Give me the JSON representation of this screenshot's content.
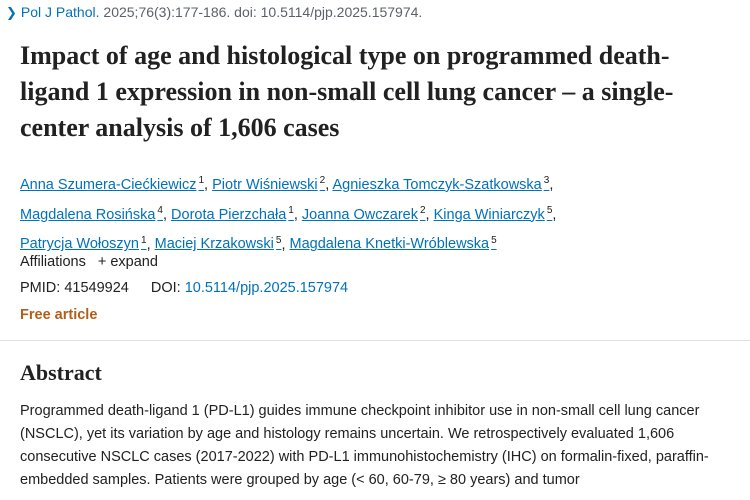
{
  "citation": {
    "journal": "Pol J Pathol.",
    "details": "2025;76(3):177-186. doi: 10.5114/pjp.2025.157974."
  },
  "title": "Impact of age and histological type on programmed death-ligand 1 expression in non-small cell lung cancer – a single-center analysis of 1,606 cases",
  "authors": [
    {
      "name": "Anna Szumera-Ciećkiewicz",
      "aff": "1"
    },
    {
      "name": "Piotr Wiśniewski",
      "aff": "2"
    },
    {
      "name": "Agnieszka Tomczyk-Szatkowska",
      "aff": "3"
    },
    {
      "name": "Magdalena Rosińska",
      "aff": "4"
    },
    {
      "name": "Dorota Pierzchała",
      "aff": "1"
    },
    {
      "name": "Joanna Owczarek",
      "aff": "2"
    },
    {
      "name": "Kinga Winiarczyk",
      "aff": "5"
    },
    {
      "name": "Patrycja Wołoszyn",
      "aff": "1"
    },
    {
      "name": "Maciej Krzakowski",
      "aff": "5"
    },
    {
      "name": "Magdalena Knetki-Wróblewska",
      "aff": "5"
    }
  ],
  "affiliations": {
    "label": "Affiliations",
    "expand_icon": "+",
    "expand_label": "expand"
  },
  "ids": {
    "pmid_label": "PMID:",
    "pmid": "41549924",
    "doi_label": "DOI:",
    "doi": "10.5114/pjp.2025.157974"
  },
  "free_article": "Free article",
  "abstract": {
    "heading": "Abstract",
    "text": "Programmed death-ligand 1 (PD-L1) guides immune checkpoint inhibitor use in non-small cell lung cancer (NSCLC), yet its variation by age and histology remains uncertain. We retrospectively evaluated 1,606 consecutive NSCLC cases (2017-2022) with PD-L1 immunohistochemistry (IHC) on formalin-fixed, paraffin- embedded samples. Patients were grouped by age (< 60, 60-79, ≥ 80 years) and tumor"
  }
}
